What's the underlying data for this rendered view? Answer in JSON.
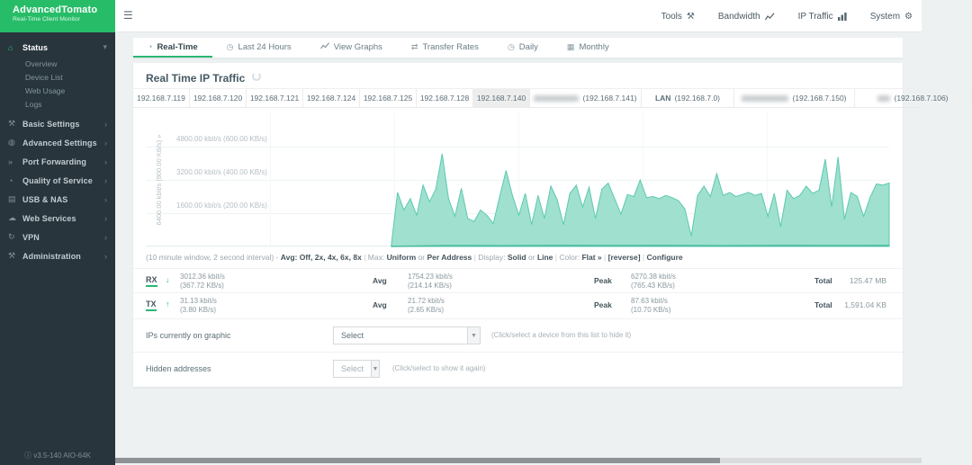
{
  "brand": {
    "name": "AdvancedTomato",
    "subtitle": "Real-Time Client Monitor",
    "version": "v3.5-140 AIO-64K"
  },
  "icons": {
    "menu": "☰",
    "info": "ⓘ",
    "tools": "⚒",
    "gear": "⚙",
    "home": "⌂",
    "wrench": "⚒",
    "globe": "◍",
    "forward": "»",
    "gauge": "◔",
    "folder": "▤",
    "cloud": "☁",
    "vpn": "↻",
    "chevron_down": "▾",
    "chevron_right": "›",
    "clock": "◷",
    "transfer": "⇄",
    "calendar": "▦",
    "realtime": "◔",
    "arrow_down": "↓",
    "arrow_up": "↑",
    "select_arrow": "▼"
  },
  "topnav": {
    "items": [
      {
        "label": "Tools"
      },
      {
        "label": "Bandwidth"
      },
      {
        "label": "IP Traffic"
      },
      {
        "label": "System"
      }
    ]
  },
  "sidebar": {
    "items": [
      {
        "label": "Status"
      },
      {
        "label": "Basic Settings"
      },
      {
        "label": "Advanced Settings"
      },
      {
        "label": "Port Forwarding"
      },
      {
        "label": "Quality of Service"
      },
      {
        "label": "USB & NAS"
      },
      {
        "label": "Web Services"
      },
      {
        "label": "VPN"
      },
      {
        "label": "Administration"
      }
    ],
    "status_children": [
      {
        "label": "Overview"
      },
      {
        "label": "Device List"
      },
      {
        "label": "Web Usage"
      },
      {
        "label": "Logs"
      }
    ]
  },
  "tabs": [
    {
      "label": "Real-Time"
    },
    {
      "label": "Last 24 Hours"
    },
    {
      "label": "View Graphs"
    },
    {
      "label": "Transfer Rates"
    },
    {
      "label": "Daily"
    },
    {
      "label": "Monthly"
    }
  ],
  "panel": {
    "title": "Real Time IP Traffic"
  },
  "ip_tabs": [
    {
      "name": "192.168.7.119"
    },
    {
      "name": "192.168.7.120"
    },
    {
      "name": "192.168.7.121"
    },
    {
      "name": "192.168.7.124"
    },
    {
      "name": "192.168.7.125"
    },
    {
      "name": "192.168.7.128"
    },
    {
      "name": "192.168.7.140",
      "active": true
    },
    {
      "redacted": true,
      "ip": "(192.168.7.141)"
    },
    {
      "name": "LAN",
      "ip": "(192.168.7.0)"
    },
    {
      "redacted": true,
      "ip": "(192.168.7.150)"
    },
    {
      "redacted": true,
      "ip": "(192.168.7.106)"
    }
  ],
  "chart_data": {
    "type": "area",
    "title": "Real Time IP Traffic",
    "ylabel": "6400.00 kbit/s (800.00 KB/s) »",
    "ytick_labels": [
      "4800.00 kbit/s (600.00 KB/s)",
      "3200.00 kbit/s (400.00 KB/s)",
      "1600.00 kbit/s (200.00 KB/s)"
    ],
    "ylim": [
      0,
      6400
    ],
    "x_window": "10 minute window, 2 second interval",
    "grid": true,
    "data_start_fraction": 0.33,
    "series": [
      {
        "name": "RX",
        "fill": "#9fe0ce",
        "stroke": "#5cc9b0",
        "values": [
          0,
          2600,
          1750,
          2300,
          1500,
          2950,
          2150,
          2750,
          4450,
          2300,
          1450,
          2800,
          1350,
          1200,
          1750,
          1500,
          1100,
          2400,
          3650,
          2450,
          1500,
          2550,
          1050,
          2450,
          1350,
          2900,
          2250,
          1050,
          2550,
          2950,
          1900,
          2850,
          1350,
          2750,
          3050,
          2300,
          1550,
          2500,
          2400,
          3200,
          2350,
          2400,
          2300,
          2450,
          2350,
          2200,
          1800,
          500,
          2450,
          2900,
          2400,
          3500,
          2450,
          2600,
          2400,
          2500,
          2600,
          2450,
          2550,
          1450,
          2550,
          950,
          2700,
          2300,
          2450,
          2900,
          2550,
          2700,
          4200,
          1900,
          4300,
          1300,
          2600,
          2400,
          1450,
          2350,
          3000,
          2950,
          3050
        ]
      },
      {
        "name": "TX",
        "stroke": "#45bb9e",
        "values": [
          0,
          40,
          35,
          45,
          38,
          42,
          36,
          44,
          40,
          42
        ]
      }
    ]
  },
  "controls": {
    "window_note": "(10 minute window, 2 second interval) -",
    "avg_label": "Avg:",
    "avg_off": "Off,",
    "avg_2x": "2x,",
    "avg_4x": "4x,",
    "avg_6x": "6x,",
    "avg_8x": "8x",
    "max_label": "Max:",
    "max_uniform": "Uniform",
    "or1": "or",
    "max_per_address": "Per Address",
    "display_label": "Display:",
    "display_solid": "Solid",
    "or2": "or",
    "display_line": "Line",
    "color_label": "Color:",
    "color_value": "Flat »",
    "reverse": "[reverse]",
    "configure": "Configure"
  },
  "stats": {
    "rows": [
      {
        "label": "RX",
        "current": "3012.36 kbit/s",
        "current_b": "(367.72 KB/s)",
        "avg_label": "Avg",
        "avg": "1754.23 kbit/s",
        "avg_b": "(214.14 KB/s)",
        "peak_label": "Peak",
        "peak": "6270.38 kbit/s",
        "peak_b": "(765.43 KB/s)",
        "total_label": "Total",
        "total": "125.47 MB"
      },
      {
        "label": "TX",
        "current": "31.13 kbit/s",
        "current_b": "(3.80 KB/s)",
        "avg_label": "Avg",
        "avg": "21.72 kbit/s",
        "avg_b": "(2.65 KB/s)",
        "peak_label": "Peak",
        "peak": "87.63 kbit/s",
        "peak_b": "(10.70 KB/s)",
        "total_label": "Total",
        "total": "1,591.04 KB"
      }
    ]
  },
  "form": {
    "rows": [
      {
        "label": "IPs currently on graphic",
        "select": "Select",
        "hint": "(Click/select a device from this list to hide it)"
      },
      {
        "label": "Hidden addresses",
        "select": "Select",
        "hint": "(Click/select to show it again)"
      }
    ]
  }
}
